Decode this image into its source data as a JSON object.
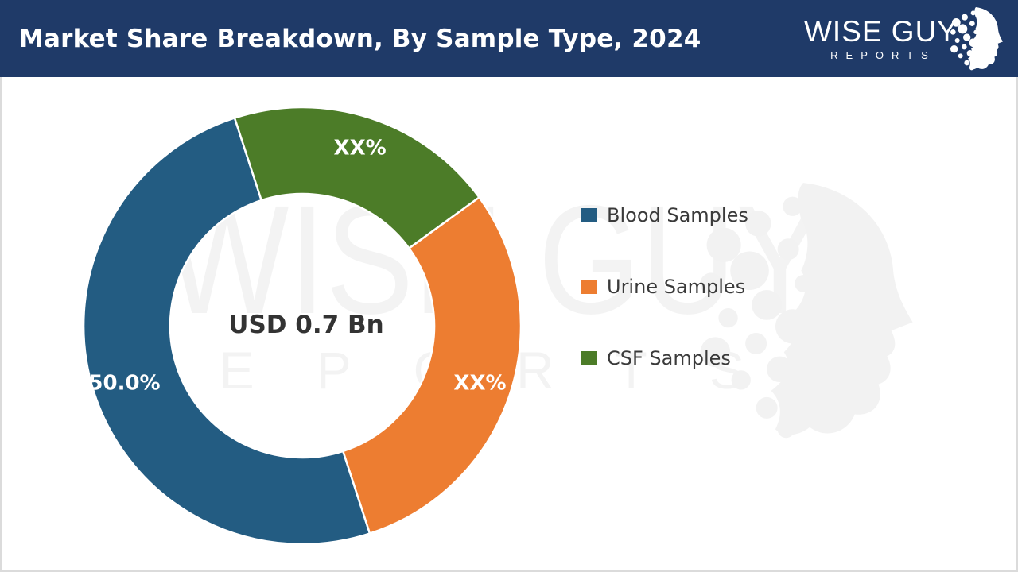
{
  "header": {
    "title": "Market Share Breakdown, By Sample Type, 2024"
  },
  "logo": {
    "line1": "WISE GUY",
    "line2": "REPORTS"
  },
  "watermark": {
    "line1": "WISE GUY",
    "line2": "REPORTS"
  },
  "chart_data": {
    "type": "pie",
    "subtype": "donut",
    "title": "Market Share Breakdown, By Sample Type, 2024",
    "center_label": "USD 0.7 Bn",
    "units": "percent market share",
    "start_angle_deg": 108,
    "direction": "counterclockwise",
    "outer_radius": 275,
    "inner_radius": 166,
    "label_radius": 235,
    "legend_position": "right",
    "slices": [
      {
        "name": "Blood Samples",
        "value": 50,
        "display_label": "50.0%",
        "color": "#235C82"
      },
      {
        "name": "Urine Samples",
        "value": 30,
        "display_label": "XX%",
        "color": "#ED7D31"
      },
      {
        "name": "CSF Samples",
        "value": 20,
        "display_label": "XX%",
        "color": "#4C7C28"
      }
    ]
  }
}
